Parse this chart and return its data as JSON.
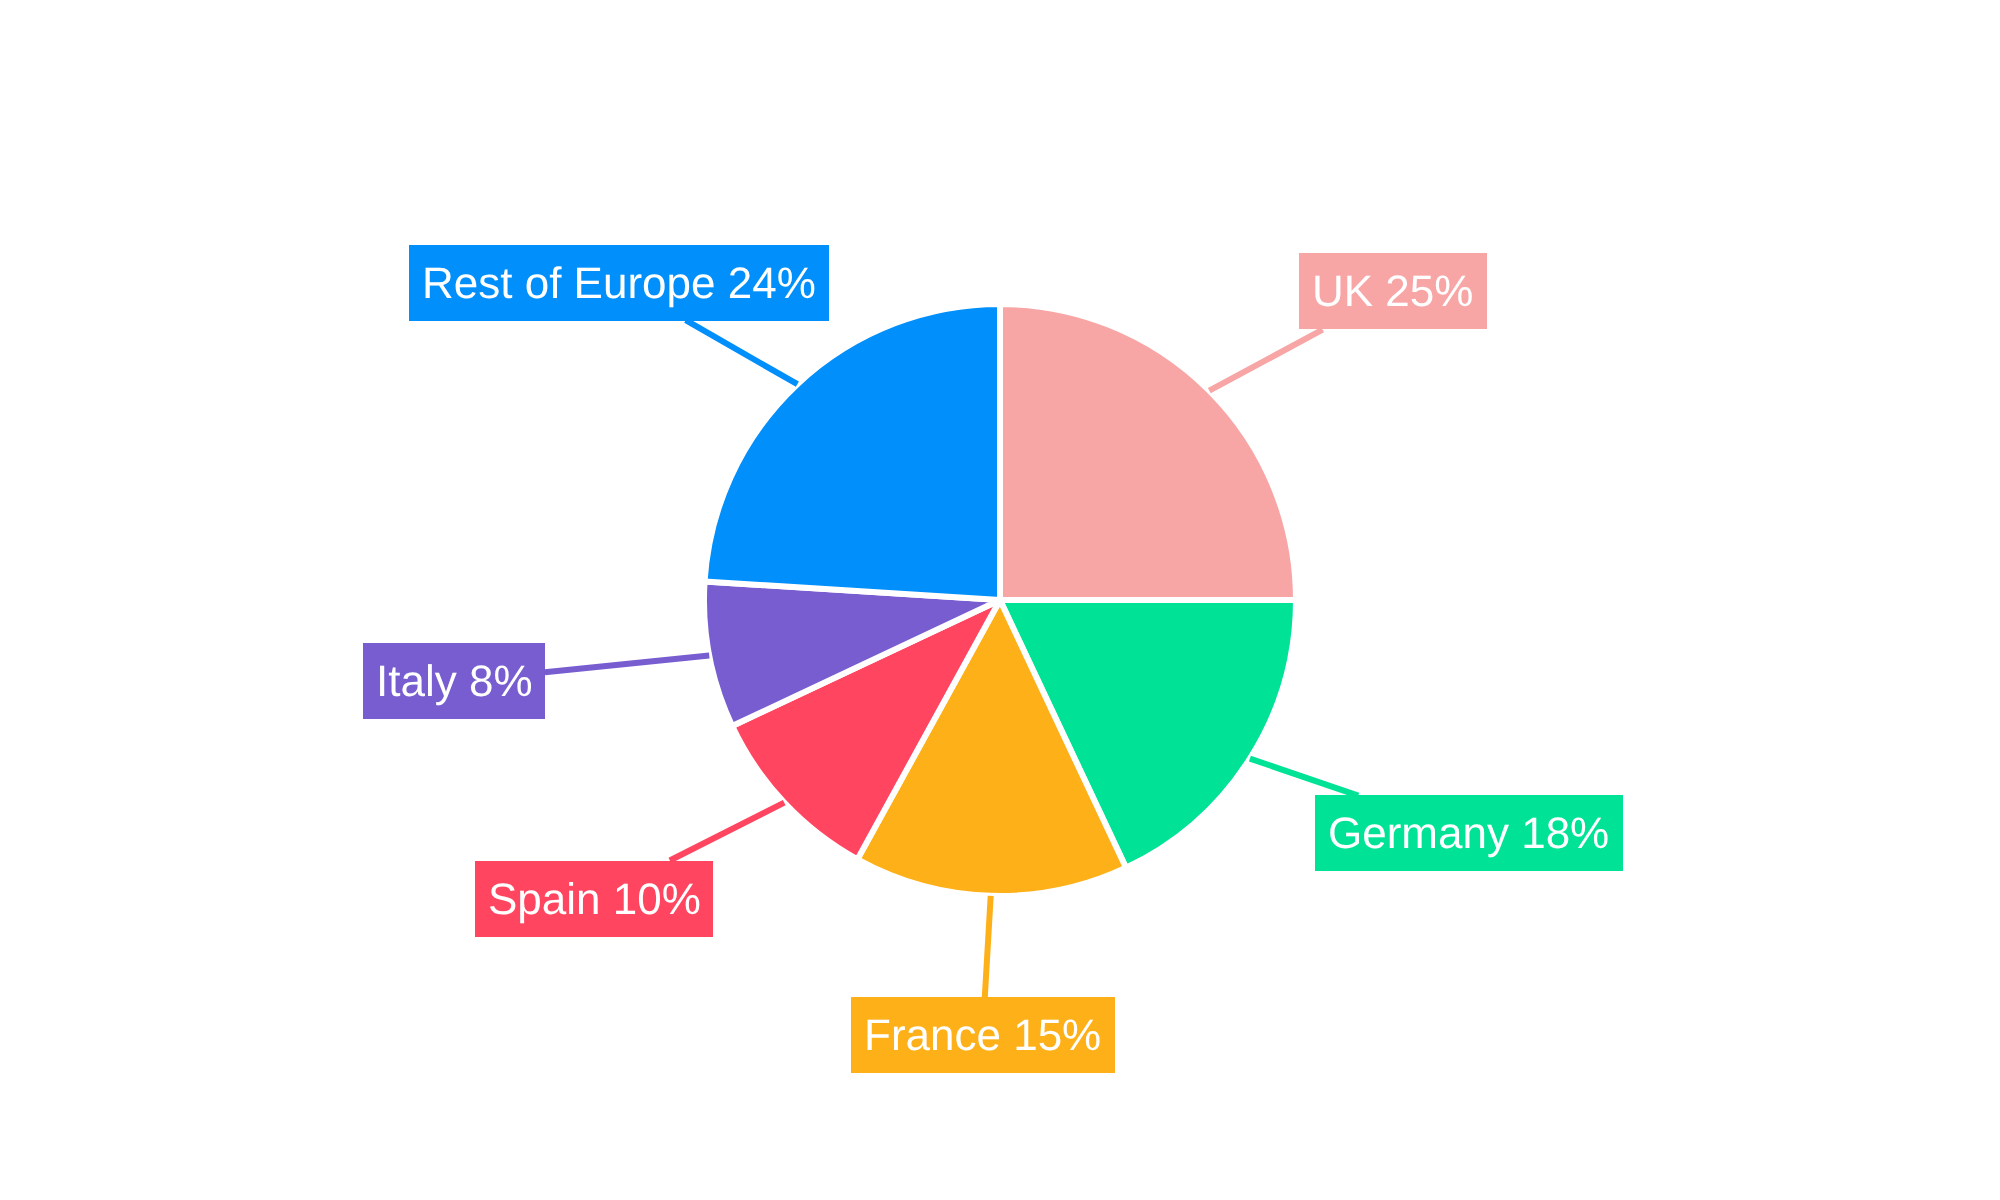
{
  "chart_data": {
    "type": "pie",
    "categories": [
      "UK",
      "Germany",
      "France",
      "Spain",
      "Italy",
      "Rest of Europe"
    ],
    "values": [
      25,
      18,
      15,
      10,
      8,
      24
    ],
    "value_labels": [
      "25%",
      "18%",
      "15%",
      "10%",
      "8%",
      "24%"
    ],
    "colors": [
      "#f8a5a6",
      "#00e396",
      "#feb019",
      "#ff4560",
      "#775dd0",
      "#008ffb"
    ],
    "legend": false
  }
}
